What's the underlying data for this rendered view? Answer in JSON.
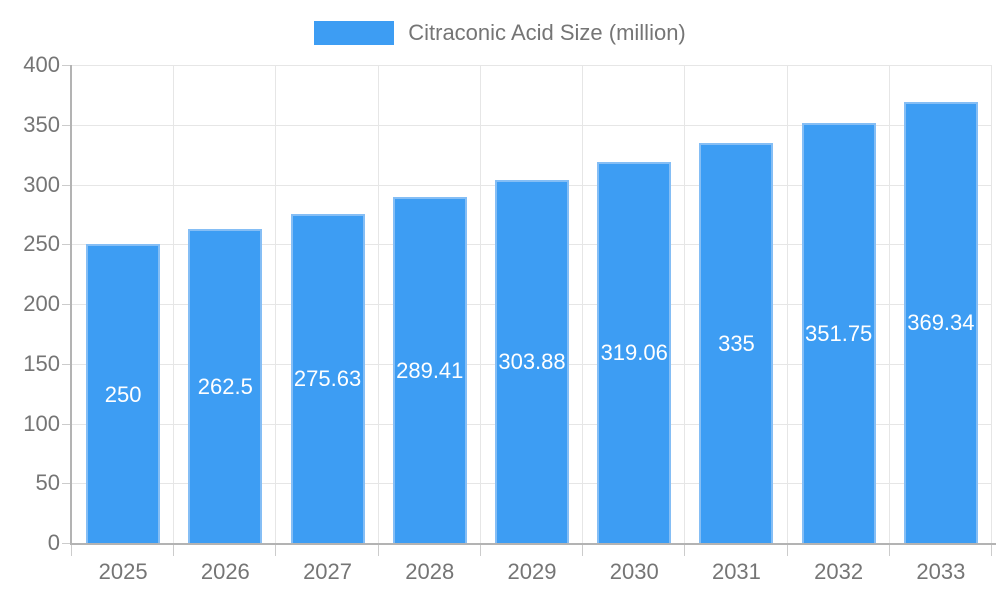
{
  "legend": {
    "label": "Citraconic Acid Size (million)"
  },
  "chart_data": {
    "type": "bar",
    "title": "",
    "xlabel": "",
    "ylabel": "",
    "categories": [
      "2025",
      "2026",
      "2027",
      "2028",
      "2029",
      "2030",
      "2031",
      "2032",
      "2033"
    ],
    "series": [
      {
        "name": "Citraconic Acid Size (million)",
        "values": [
          250,
          262.5,
          275.63,
          289.41,
          303.88,
          319.06,
          335,
          351.75,
          369.34
        ],
        "value_labels": [
          "250",
          "262.5",
          "275.63",
          "289.41",
          "303.88",
          "319.06",
          "335",
          "351.75",
          "369.34"
        ]
      }
    ],
    "ylim": [
      0,
      400
    ],
    "ytick_interval": 50,
    "yticks": [
      "0",
      "50",
      "100",
      "150",
      "200",
      "250",
      "300",
      "350",
      "400"
    ],
    "grid": true,
    "legend_position": "top-center",
    "value_labels_position": "inside-center"
  },
  "colors": {
    "bar_fill": "#3D9DF3",
    "bar_border": "#85BEF5",
    "grid_line": "#E6E6E6",
    "axis_line": "#B3B3B3",
    "tick_mark": "#CCCCCC",
    "axis_text": "#757575",
    "legend_text": "#757575",
    "value_label_text": "#FFFFFF",
    "background": "#FFFFFF"
  }
}
